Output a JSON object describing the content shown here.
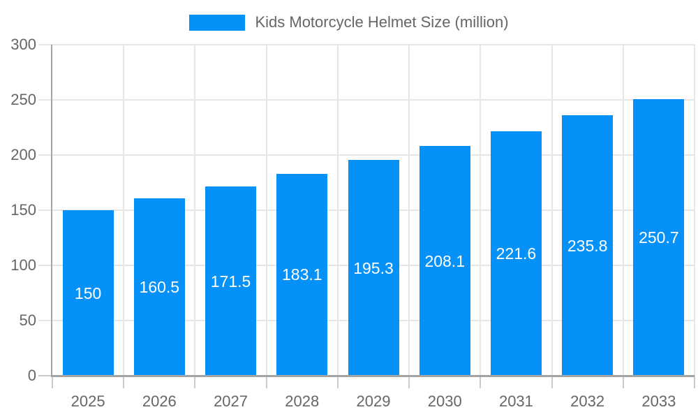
{
  "chart_data": {
    "type": "bar",
    "title": "Kids Motorcycle Helmet Size (million)",
    "categories": [
      "2025",
      "2026",
      "2027",
      "2028",
      "2029",
      "2030",
      "2031",
      "2032",
      "2033"
    ],
    "series": [
      {
        "name": "Kids Motorcycle Helmet Size (million)",
        "values": [
          150,
          160.5,
          171.5,
          183.1,
          195.3,
          208.1,
          221.6,
          235.8,
          250.7
        ]
      }
    ],
    "value_labels": [
      "150",
      "160.5",
      "171.5",
      "183.1",
      "195.3",
      "208.1",
      "221.6",
      "235.8",
      "250.7"
    ],
    "xlabel": "",
    "ylabel": "",
    "ylim": [
      0,
      300
    ],
    "yticks": [
      0,
      50,
      100,
      150,
      200,
      250,
      300
    ],
    "grid": "on",
    "legend_position": "top",
    "colors": {
      "bar": "#0591f8",
      "grid": "#e6e6e6",
      "tick": "#cbcbcb",
      "axis": "#a3a3a3",
      "text": "#666666",
      "value_label": "#ffffff",
      "background": "#ffffff"
    }
  },
  "legend": {
    "label": "Kids Motorcycle Helmet Size (million)"
  }
}
